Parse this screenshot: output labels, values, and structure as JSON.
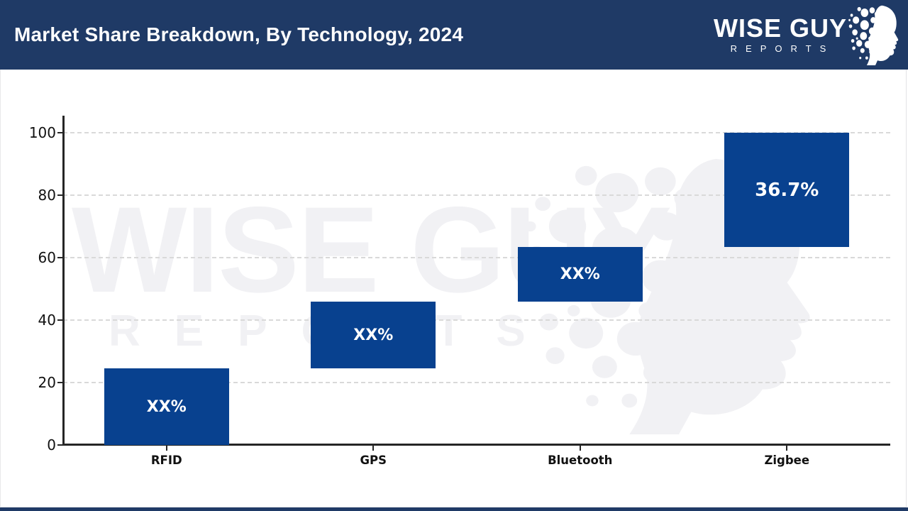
{
  "header": {
    "title": "Market Share Breakdown, By Technology, 2024",
    "logo": {
      "line1": "WISE GUY",
      "line2": "REPORTS"
    }
  },
  "watermark": {
    "line1": "WISE GUY",
    "line2": "REPORTS"
  },
  "colors": {
    "header_bg": "#1f3a66",
    "bar": "#08418f",
    "bar_label": "#ffffff",
    "gridline": "#d9d9d9",
    "axis": "#262626",
    "watermark": "#f1f1f4"
  },
  "chart_data": {
    "type": "bar",
    "subtype": "floating-waterfall",
    "title": "Market Share Breakdown, By Technology, 2024",
    "categories": [
      "RFID",
      "GPS",
      "Bluetooth",
      "Zigbee"
    ],
    "bars": [
      {
        "category": "RFID",
        "start": 0,
        "end": 24.5,
        "value": 24.5,
        "label": "XX%"
      },
      {
        "category": "GPS",
        "start": 24.5,
        "end": 45.8,
        "value": 21.3,
        "label": "XX%"
      },
      {
        "category": "Bluetooth",
        "start": 45.8,
        "end": 63.3,
        "value": 17.5,
        "label": "XX%"
      },
      {
        "category": "Zigbee",
        "start": 63.3,
        "end": 100,
        "value": 36.7,
        "label": "36.7%"
      }
    ],
    "xlabel": "",
    "ylabel": "",
    "ylim": [
      0,
      105
    ],
    "yticks": [
      0,
      20,
      40,
      60,
      80,
      100
    ],
    "grid": "horizontal-dashed",
    "legend": "none",
    "value_suffix": "%"
  }
}
